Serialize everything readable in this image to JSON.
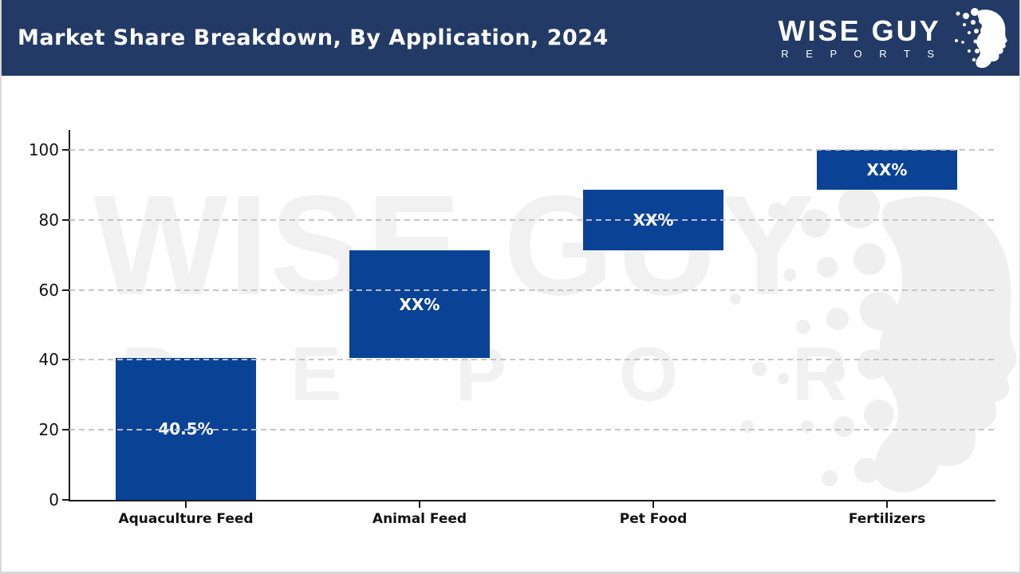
{
  "header": {
    "title": "Market Share Breakdown, By Application, 2024",
    "brand": {
      "line1": "WISE GUY",
      "line2": "R E P O R T S"
    },
    "bg_color": "#233a66"
  },
  "watermark": {
    "line1": "WISE GUY",
    "line2": "R E P O R T S"
  },
  "chart_data": {
    "type": "bar",
    "variant": "floating-waterfall",
    "title": "Market Share Breakdown, By Application, 2024",
    "categories": [
      "Aquaculture Feed",
      "Animal Feed",
      "Pet Food",
      "Fertilizers"
    ],
    "segments": [
      {
        "category": "Aquaculture Feed",
        "start": 0,
        "end": 40.5,
        "label": "40.5%"
      },
      {
        "category": "Animal Feed",
        "start": 40.5,
        "end": 71.3,
        "label": "XX%"
      },
      {
        "category": "Pet Food",
        "start": 71.3,
        "end": 88.7,
        "label": "XX%"
      },
      {
        "category": "Fertilizers",
        "start": 88.7,
        "end": 100,
        "label": "XX%"
      }
    ],
    "xlabel": "",
    "ylabel": "",
    "ylim": [
      0,
      100
    ],
    "yticks": [
      0,
      20,
      40,
      60,
      80,
      100
    ],
    "grid": "horizontal-dashed",
    "legend": "none",
    "bar_color": "#0a4296",
    "bar_label_color": "#ffffff",
    "axis_color": "#1a1a1a"
  }
}
